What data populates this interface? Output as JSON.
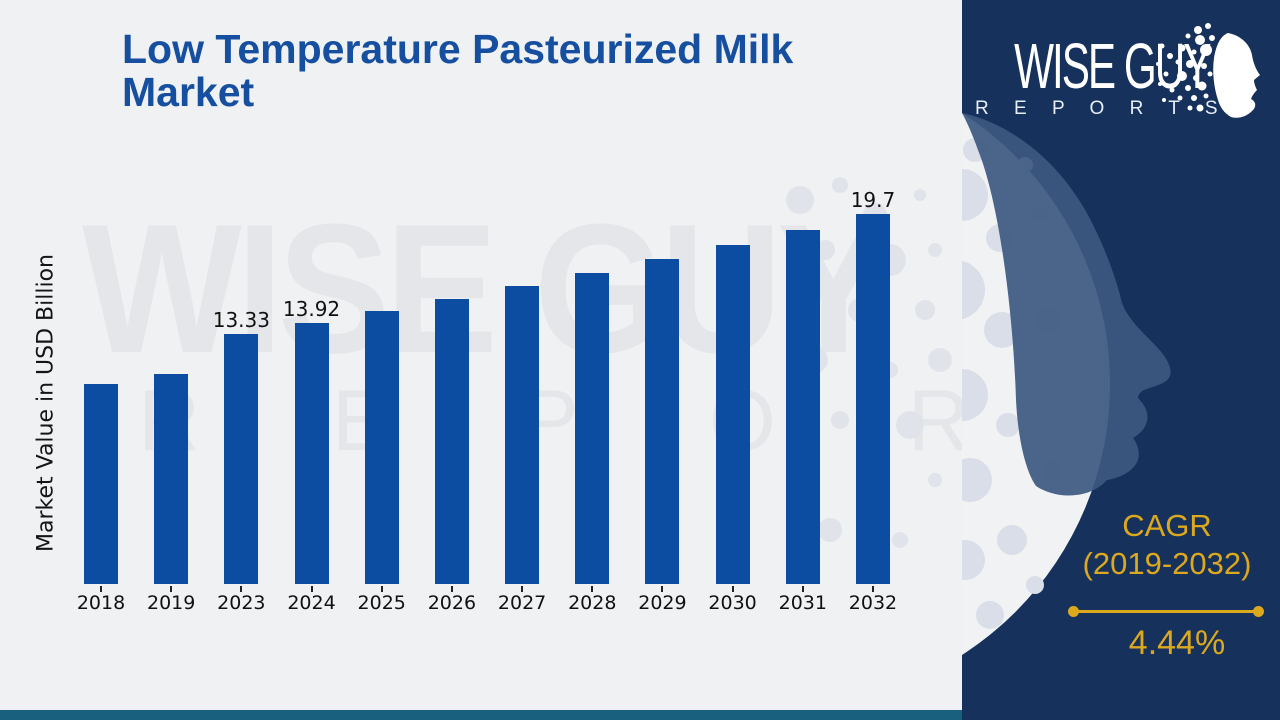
{
  "page": {
    "background": "#f0f1f2"
  },
  "header": {
    "title": "Low Temperature Pasteurized Milk Market",
    "title_color": "#164f9f"
  },
  "logo": {
    "name_line": "WISE GUY",
    "reports_line": "R E P O R T S",
    "face_icon": "face-profile-dots-icon"
  },
  "watermark": {
    "line1": "WISE GUY",
    "line2": "R E P O R T S"
  },
  "cagr": {
    "label": "CAGR",
    "range": "(2019-2032)",
    "value": "4.44%",
    "color": "#dca81e"
  },
  "panel": {
    "navy": "#16315c",
    "face_color": "#3d5880",
    "circle_color": "#f1f2f4",
    "teal_strip": "#19607f"
  },
  "chart_data": {
    "type": "bar",
    "title": "Low Temperature Pasteurized Milk Market",
    "xlabel": "",
    "ylabel": "Market Value in USD Billion",
    "categories": [
      "2018",
      "2019",
      "2023",
      "2024",
      "2025",
      "2026",
      "2027",
      "2028",
      "2029",
      "2030",
      "2031",
      "2032"
    ],
    "values": [
      10.65,
      11.2,
      13.33,
      13.92,
      14.54,
      15.18,
      15.86,
      16.56,
      17.3,
      18.06,
      18.87,
      19.7
    ],
    "annotations": [
      {
        "category": "2023",
        "text": "13.33"
      },
      {
        "category": "2024",
        "text": "13.92"
      },
      {
        "category": "2032",
        "text": "19.7"
      }
    ],
    "bar_color": "#0c4da2",
    "ylim": [
      0,
      20
    ],
    "grid": false,
    "legend": null
  }
}
